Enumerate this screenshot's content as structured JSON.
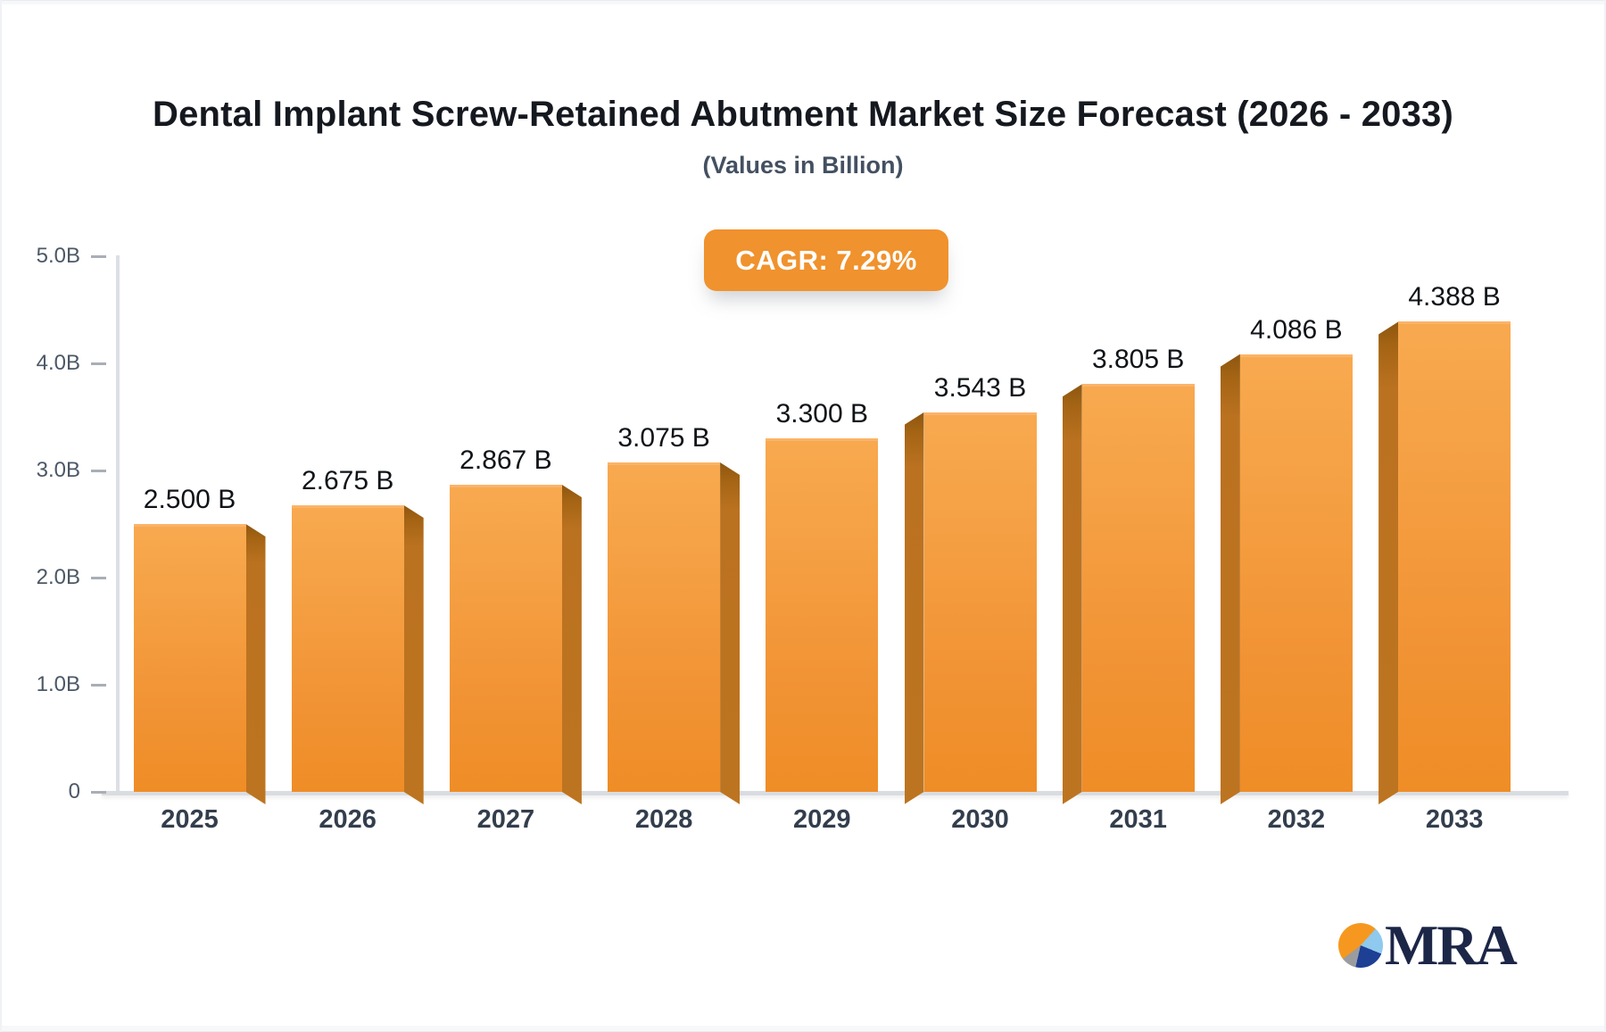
{
  "page": {
    "background": "#f8f9fb",
    "card_background": "#ffffff"
  },
  "header": {
    "title": "Dental Implant Screw-Retained Abutment Market Size Forecast (2026 - 2033)",
    "subtitle": "(Values in Billion)",
    "cagr_badge": "CAGR: 7.29%",
    "cagr_badge_color": "#f0922d"
  },
  "chart_data": {
    "type": "bar",
    "title": "Dental Implant Screw-Retained Abutment Market Size Forecast (2026 - 2033)",
    "subtitle": "(Values in Billion)",
    "annotation": "CAGR: 7.29%",
    "categories": [
      "2025",
      "2026",
      "2027",
      "2028",
      "2029",
      "2030",
      "2031",
      "2032",
      "2033"
    ],
    "values": [
      2.5,
      2.675,
      2.867,
      3.075,
      3.3,
      3.543,
      3.805,
      4.086,
      4.388
    ],
    "value_labels": [
      "2.500 B",
      "2.675 B",
      "2.867 B",
      "3.075 B",
      "3.300 B",
      "3.543 B",
      "3.805 B",
      "4.086 B",
      "4.388 B"
    ],
    "unit": "Billion",
    "xlabel": "",
    "ylabel": "",
    "ylim": [
      0,
      5
    ],
    "y_ticks": [
      {
        "value": 0,
        "label": "0"
      },
      {
        "value": 1.0,
        "label": "1.0B"
      },
      {
        "value": 2.0,
        "label": "2.0B"
      },
      {
        "value": 3.0,
        "label": "3.0B"
      },
      {
        "value": 4.0,
        "label": "4.0B"
      },
      {
        "value": 5.0,
        "label": "5.0B"
      }
    ],
    "grid": false,
    "legend": false,
    "bar_style": "3d",
    "bar_face_color_top": "#f8a94f",
    "bar_face_color_bottom": "#ef8d26",
    "bar_side_color": "#bd7420",
    "axis_color": "#dcdfe4",
    "tick_color": "#a9aeb6",
    "tick_label_color": "#4c5866",
    "category_label_color": "#333e4d",
    "value_label_color": "#101418"
  },
  "logo": {
    "text": "MRA",
    "text_color": "#1c2647",
    "pie_colors": [
      "#f6981f",
      "#8fc9ed",
      "#1d3f94",
      "#9b9ca0"
    ]
  }
}
